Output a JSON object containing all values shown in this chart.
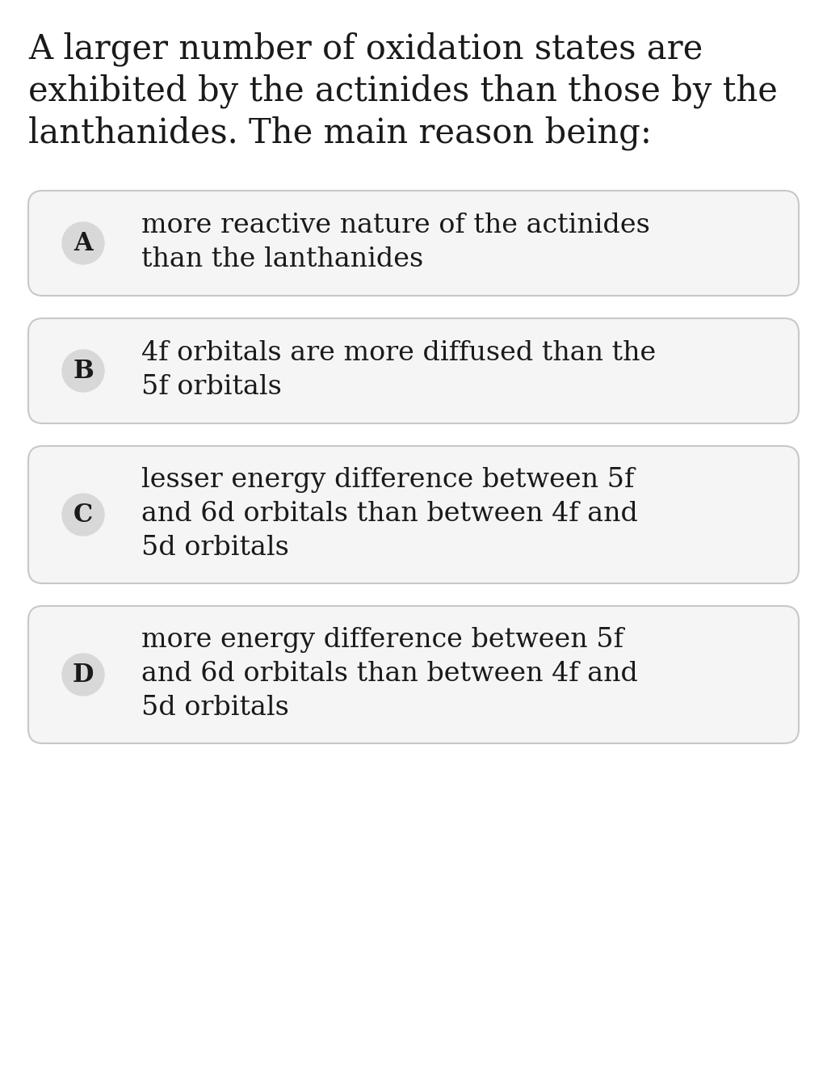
{
  "background_color": "#ffffff",
  "question_lines": [
    "A larger number of oxidation states are",
    "exhibited by the actinides than those by the",
    "lanthanides. The main reason being:"
  ],
  "options": [
    {
      "label": "A",
      "lines": [
        "more reactive nature of the actinides",
        "than the lanthanides"
      ],
      "label_bg": "#d8d8d8",
      "box_bg": "#f5f5f5"
    },
    {
      "label": "B",
      "lines": [
        "4f orbitals are more diffused than the",
        "5f orbitals"
      ],
      "label_bg": "#d8d8d8",
      "box_bg": "#f5f5f5"
    },
    {
      "label": "C",
      "lines": [
        "lesser energy difference between 5f",
        "and 6d orbitals than between 4f and",
        "5d orbitals"
      ],
      "label_bg": "#d8d8d8",
      "box_bg": "#f5f5f5"
    },
    {
      "label": "D",
      "lines": [
        "more energy difference between 5f",
        "and 6d orbitals than between 4f and",
        "5d orbitals"
      ],
      "label_bg": "#d8d8d8",
      "box_bg": "#f5f5f5"
    }
  ],
  "question_fontsize": 30,
  "option_label_fontsize": 22,
  "option_text_fontsize": 24,
  "text_color": "#1a1a1a",
  "label_text_color": "#1a1a1a",
  "border_color": "#c8c8c8",
  "fig_width": 10.24,
  "fig_height": 13.33,
  "dpi": 100
}
